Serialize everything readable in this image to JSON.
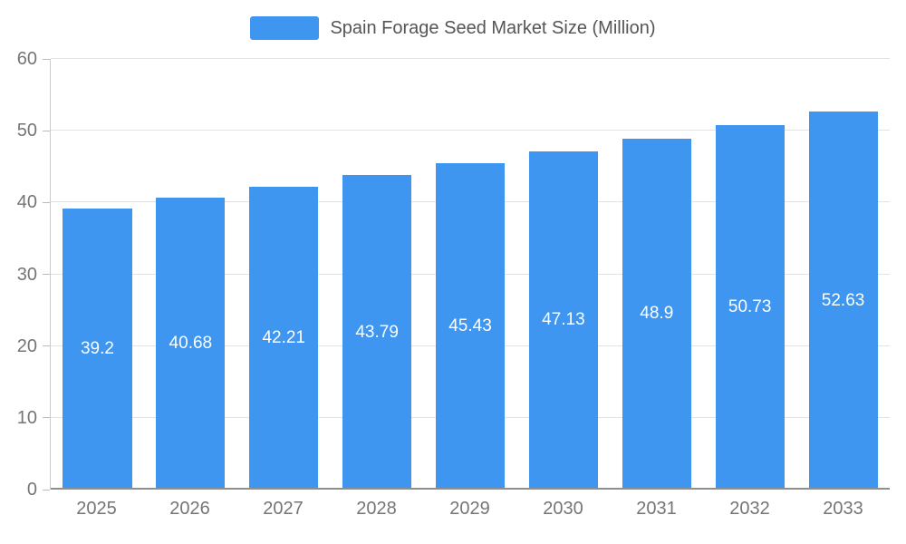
{
  "legend": {
    "title": "Spain Forage Seed Market Size (Million)"
  },
  "colors": {
    "bar": "#3E96F0",
    "axis_text": "#757575",
    "grid": "#E3E3E3",
    "baseline": "#8F8F8F",
    "value_label": "#FFFFFF",
    "legend_text": "#555555"
  },
  "chart_data": {
    "type": "bar",
    "title": "Spain Forage Seed Market Size (Million)",
    "categories": [
      "2025",
      "2026",
      "2027",
      "2028",
      "2029",
      "2030",
      "2031",
      "2032",
      "2033"
    ],
    "values": [
      39.2,
      40.68,
      42.21,
      43.79,
      45.43,
      47.13,
      48.9,
      50.73,
      52.63
    ],
    "series_name": "Spain Forage Seed Market Size (Million)",
    "xlabel": "",
    "ylabel": "",
    "ylim": [
      0,
      60
    ],
    "yticks": [
      0,
      10,
      20,
      30,
      40,
      50,
      60
    ],
    "grid": true,
    "legend_position": "top",
    "value_labels": "inside-center"
  }
}
